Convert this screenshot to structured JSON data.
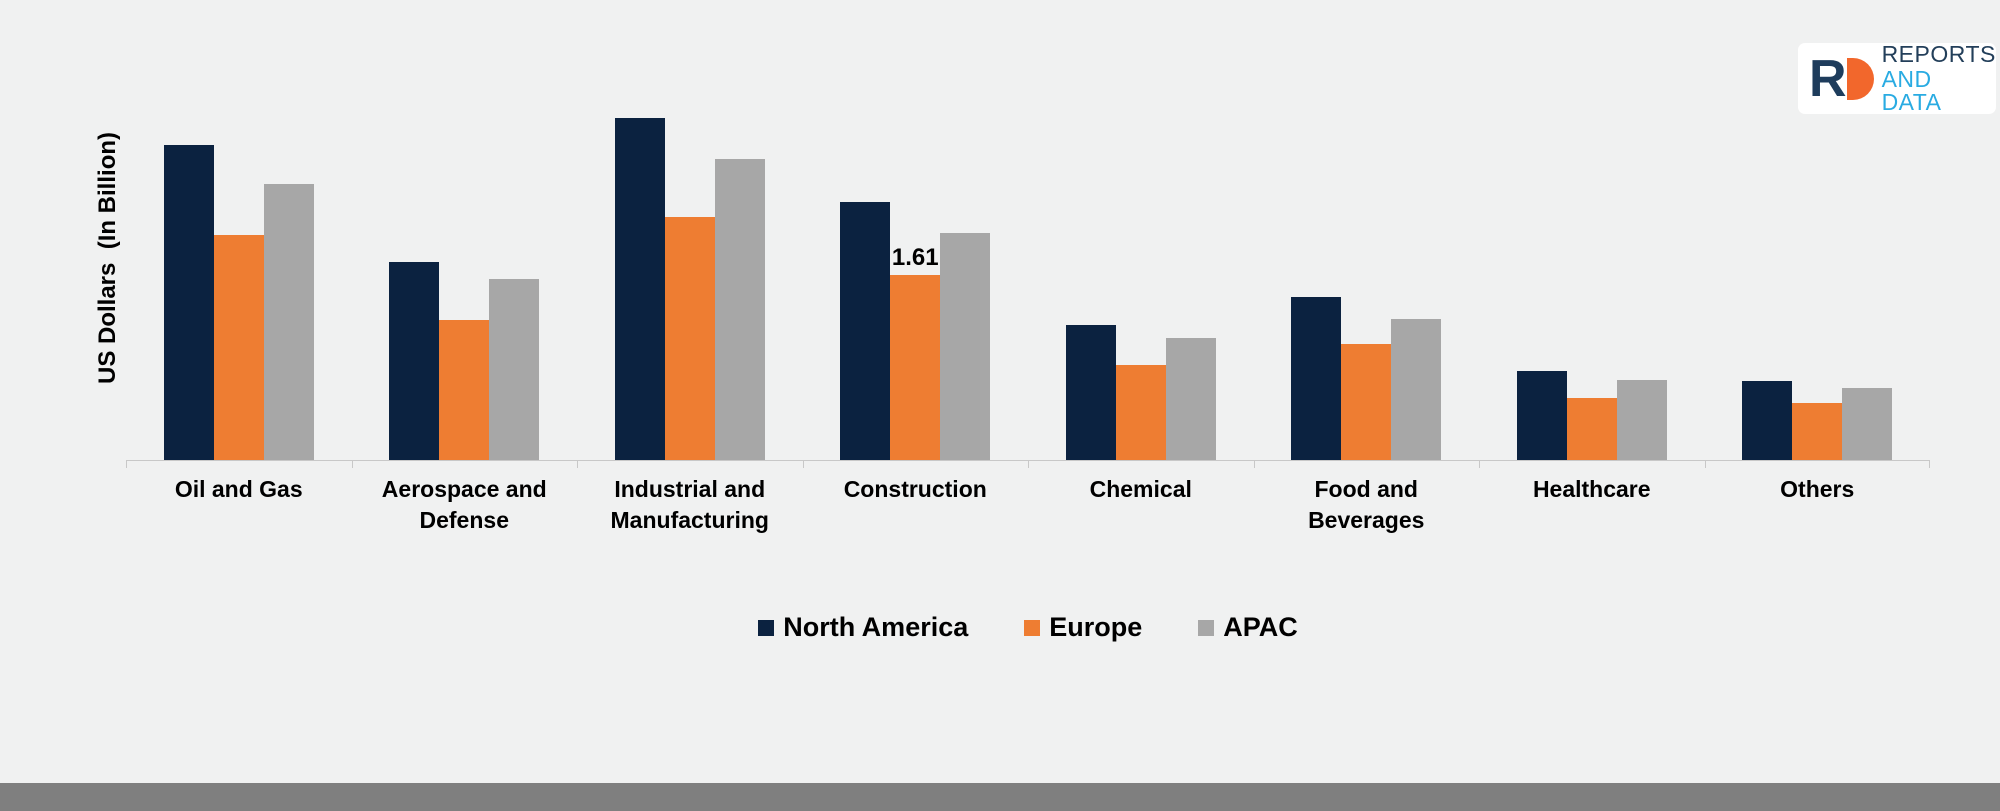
{
  "page": {
    "background_color": "#F0F1F1",
    "footer_band_color": "#7F7F7F"
  },
  "logo": {
    "monogram_letter": "R",
    "monogram_r_color": "#1E3C5C",
    "monogram_d_color": "#F2672C",
    "line1": "REPORTS",
    "line2": "AND DATA",
    "line1_color": "#233F5A",
    "line2_color": "#29ABE2"
  },
  "chart_data": {
    "type": "bar",
    "title": "",
    "ylabel": "US Dollars  (In Billion)",
    "xlabel": "",
    "categories": [
      "Oil and Gas",
      "Aerospace and Defense",
      "Industrial and Manufacturing",
      "Construction",
      "Chemical",
      "Food and Beverages",
      "Healthcare",
      "Others"
    ],
    "series": [
      {
        "name": "North America",
        "color": "#0B2240",
        "values": [
          2.75,
          1.73,
          2.98,
          2.25,
          1.18,
          1.42,
          0.78,
          0.69
        ]
      },
      {
        "name": "Europe",
        "color": "#EE7D32",
        "values": [
          1.96,
          1.22,
          2.12,
          1.61,
          0.83,
          1.01,
          0.54,
          0.5
        ]
      },
      {
        "name": "APAC",
        "color": "#A7A7A7",
        "values": [
          2.41,
          1.58,
          2.63,
          1.98,
          1.06,
          1.23,
          0.7,
          0.63
        ]
      }
    ],
    "data_labels": [
      {
        "series": "Europe",
        "category": "Construction",
        "text": "1.61"
      }
    ],
    "ylim": [
      0,
      3.28
    ],
    "y_tick_labels_visible": false,
    "grid": false,
    "legend_position": "bottom",
    "axis_color": "#C8C8C8"
  }
}
